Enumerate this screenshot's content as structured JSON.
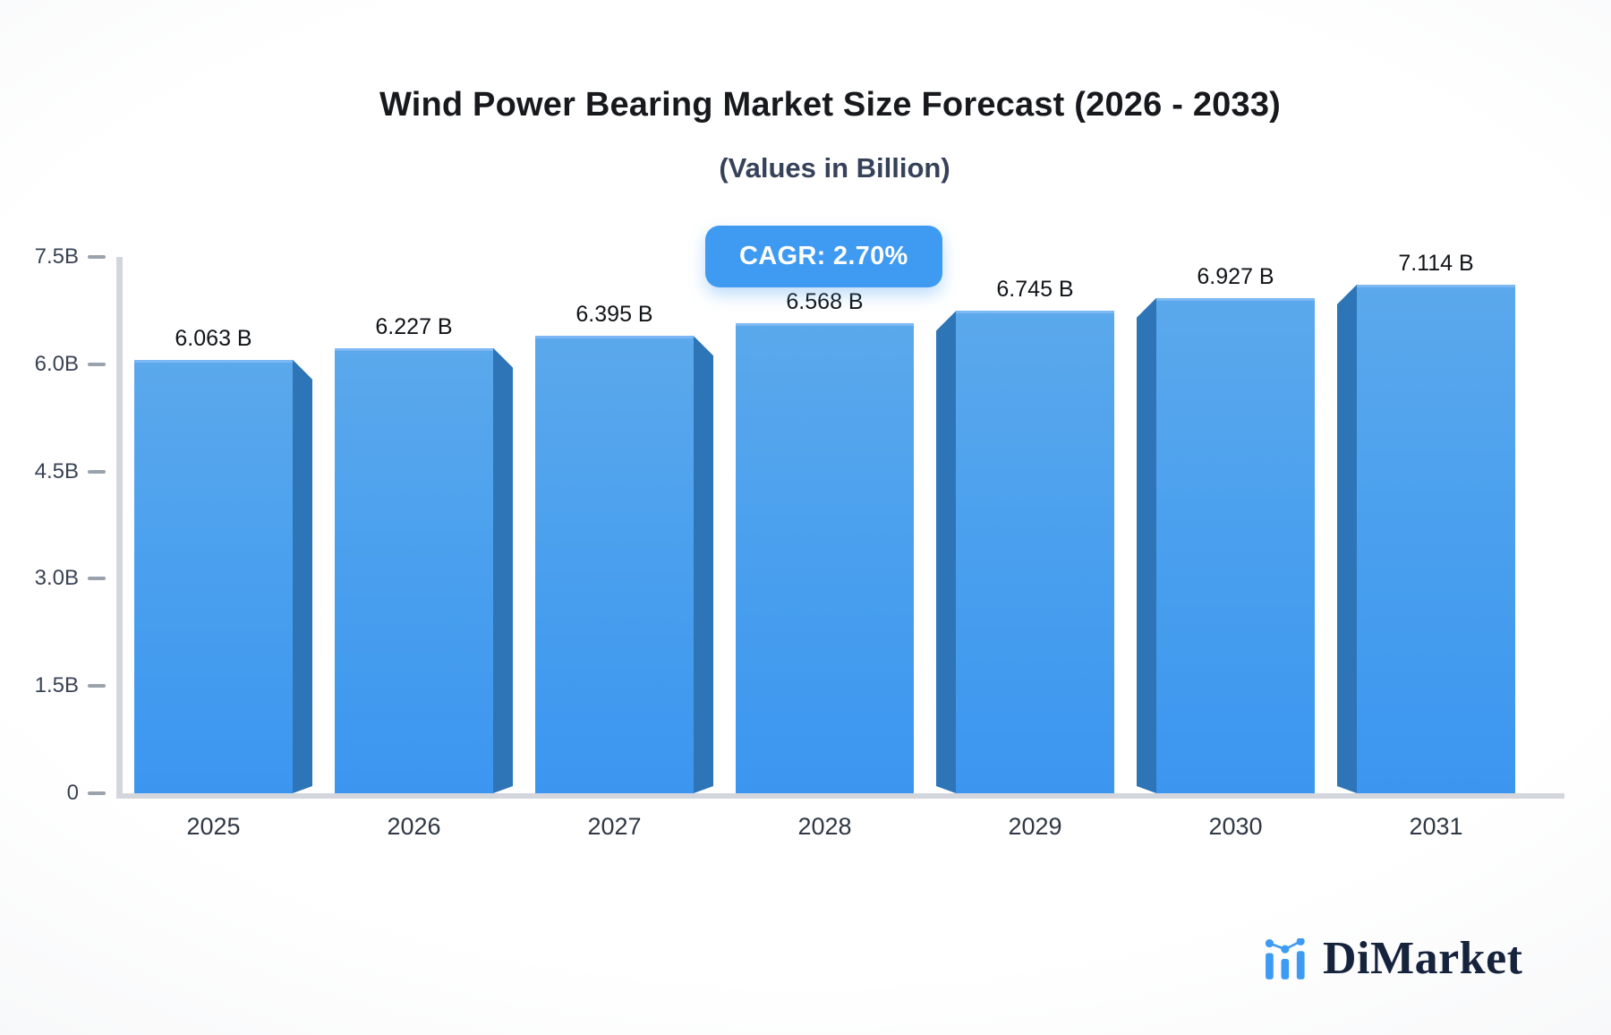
{
  "header": {
    "title": "Wind Power Bearing Market Size Forecast (2026 - 2033)",
    "subtitle": "(Values in Billion)"
  },
  "badge": {
    "label": "CAGR: 2.70%",
    "color": "#3f9af1",
    "text_color": "#ffffff"
  },
  "chart_data": {
    "type": "bar",
    "title": "Wind Power Bearing Market Size Forecast (2026 - 2033)",
    "subtitle": "(Values in Billion)",
    "xlabel": "",
    "ylabel": "",
    "categories": [
      "2025",
      "2026",
      "2027",
      "2028",
      "2029",
      "2030",
      "2031"
    ],
    "values": [
      6.063,
      6.227,
      6.395,
      6.568,
      6.745,
      6.927,
      7.114
    ],
    "value_labels": [
      "6.063 B",
      "6.227 B",
      "6.395 B",
      "6.568 B",
      "6.745 B",
      "6.927 B",
      "7.114 B"
    ],
    "ylim": [
      0,
      7.5
    ],
    "yticks": [
      "7.5B",
      "6.0B",
      "4.5B",
      "3.0B",
      "1.5B",
      "0"
    ],
    "ytick_values": [
      7.5,
      6.0,
      4.5,
      3.0,
      1.5,
      0
    ],
    "grid": false,
    "legend": false,
    "sides": [
      "right",
      "right",
      "right",
      "none",
      "left",
      "left",
      "left"
    ],
    "bar_color_top": "#5ba8ec",
    "bar_color_bottom": "#3c96f0",
    "bar_side_color": "#2d75b6",
    "bar_highlight_color": "#7cb8f2",
    "axis_line_color": "#d3d6dc",
    "tick_color": "#3a4354"
  },
  "logo": {
    "text": "DiMarket",
    "icon": "bar-line-chart-icon",
    "icon_color": "#3e9bf4",
    "text_color": "#16233c"
  }
}
